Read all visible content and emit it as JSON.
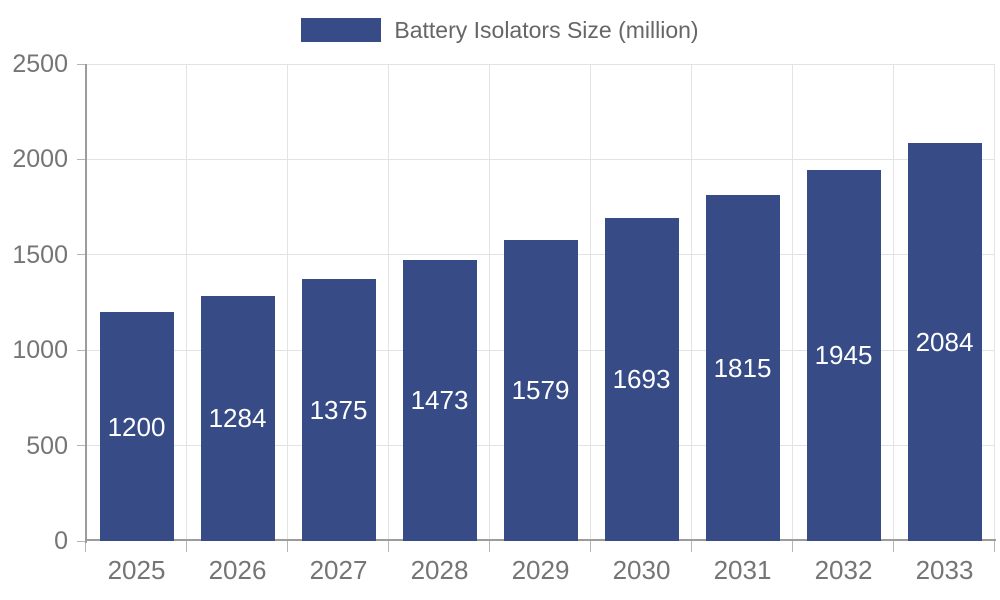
{
  "legend": {
    "label": "Battery Isolators Size (million)"
  },
  "chart_data": {
    "type": "bar",
    "title": "Battery Isolators Size (million)",
    "categories": [
      "2025",
      "2026",
      "2027",
      "2028",
      "2029",
      "2030",
      "2031",
      "2032",
      "2033"
    ],
    "series": [
      {
        "name": "Battery Isolators Size (million)",
        "values": [
          1200,
          1284,
          1375,
          1473,
          1579,
          1693,
          1815,
          1945,
          2084
        ]
      }
    ],
    "xlabel": "",
    "ylabel": "",
    "ylim": [
      0,
      2500
    ],
    "yticks": [
      0,
      500,
      1000,
      1500,
      2000,
      2500
    ],
    "grid": true,
    "legend_position": "top",
    "value_labels_inside_bars": true,
    "colors": {
      "bar": "#374B87",
      "value_label": "#FFFFFF",
      "grid_line": "#E3E3E3",
      "axis_line": "#9C9C9C",
      "tick_mark": "#B5B5B5",
      "tick_label": "#757575",
      "legend_text": "#666666",
      "background": "#FFFFFF"
    }
  }
}
